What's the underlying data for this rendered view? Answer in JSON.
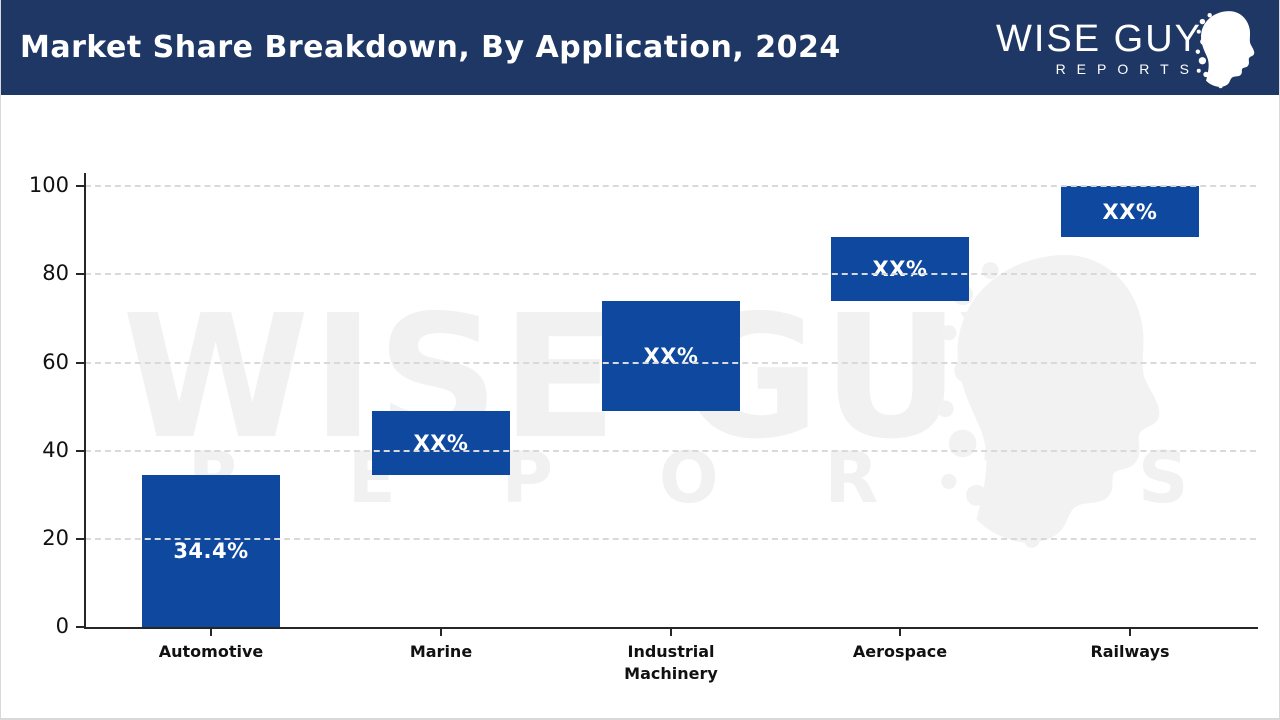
{
  "header": {
    "title": "Market Share Breakdown, By Application, 2024",
    "logo": {
      "line1": "WISE GUY",
      "line2": "REPORTS"
    }
  },
  "watermark": {
    "line1": "WISE GUY",
    "line2": "REPORTS"
  },
  "colors": {
    "header_bg": "#1e3765",
    "bar_fill": "#0e489f",
    "bar_label": "#ffffff",
    "axis": "#262626",
    "gridline": "#d9d9d9",
    "watermark": "#f1f1f1"
  },
  "chart_data": {
    "type": "bar",
    "subtype": "waterfall",
    "title": "Market Share Breakdown, By Application, 2024",
    "categories": [
      "Automotive",
      "Marine",
      "Industrial Machinery",
      "Aerospace",
      "Railways"
    ],
    "segments": [
      {
        "category": "Automotive",
        "start": 0,
        "end": 34.4,
        "label": "34.4%"
      },
      {
        "category": "Marine",
        "start": 34.4,
        "end": 49.0,
        "label": "XX%"
      },
      {
        "category": "Industrial Machinery",
        "start": 49.0,
        "end": 74.0,
        "label": "XX%"
      },
      {
        "category": "Aerospace",
        "start": 74.0,
        "end": 88.4,
        "label": "XX%"
      },
      {
        "category": "Railways",
        "start": 88.4,
        "end": 100.0,
        "label": "XX%"
      }
    ],
    "xlabel": "",
    "ylabel": "",
    "ylim": [
      0,
      100
    ],
    "yticks": [
      0,
      20,
      40,
      60,
      80,
      100
    ],
    "grid": "horizontal dashed, drawn over bars",
    "legend_position": "none"
  }
}
